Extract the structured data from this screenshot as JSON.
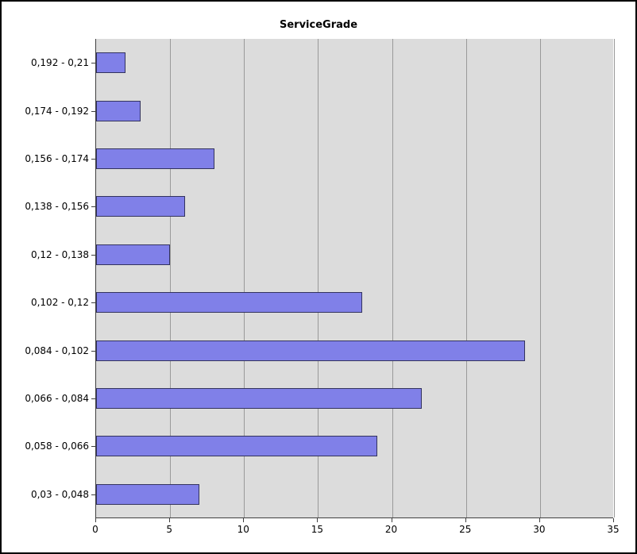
{
  "window": {
    "background_color": "#ffffff",
    "frame_border_color": "#000000"
  },
  "chart_data": {
    "type": "bar",
    "orientation": "horizontal",
    "title": "ServiceGrade",
    "categories": [
      "0,192 - 0,21",
      "0,174 - 0,192",
      "0,156 - 0,174",
      "0,138 - 0,156",
      "0,12 - 0,138",
      "0,102 - 0,12",
      "0,084 - 0,102",
      "0,066 - 0,084",
      "0,058 - 0,066",
      "0,03 - 0,048"
    ],
    "values": [
      2,
      3,
      8,
      6,
      5,
      18,
      29,
      22,
      19,
      7
    ],
    "xlabel": "",
    "ylabel": "",
    "xlim": [
      0,
      35
    ],
    "x_ticks": [
      0,
      5,
      10,
      15,
      20,
      25,
      30,
      35
    ],
    "grid": "vertical",
    "legend": "none",
    "plot_background": "#dcdcdc",
    "gridline_color": "#999999",
    "axis_color": "#404040",
    "bar_color": "#8080e8",
    "bar_border_color": "#33335e"
  }
}
